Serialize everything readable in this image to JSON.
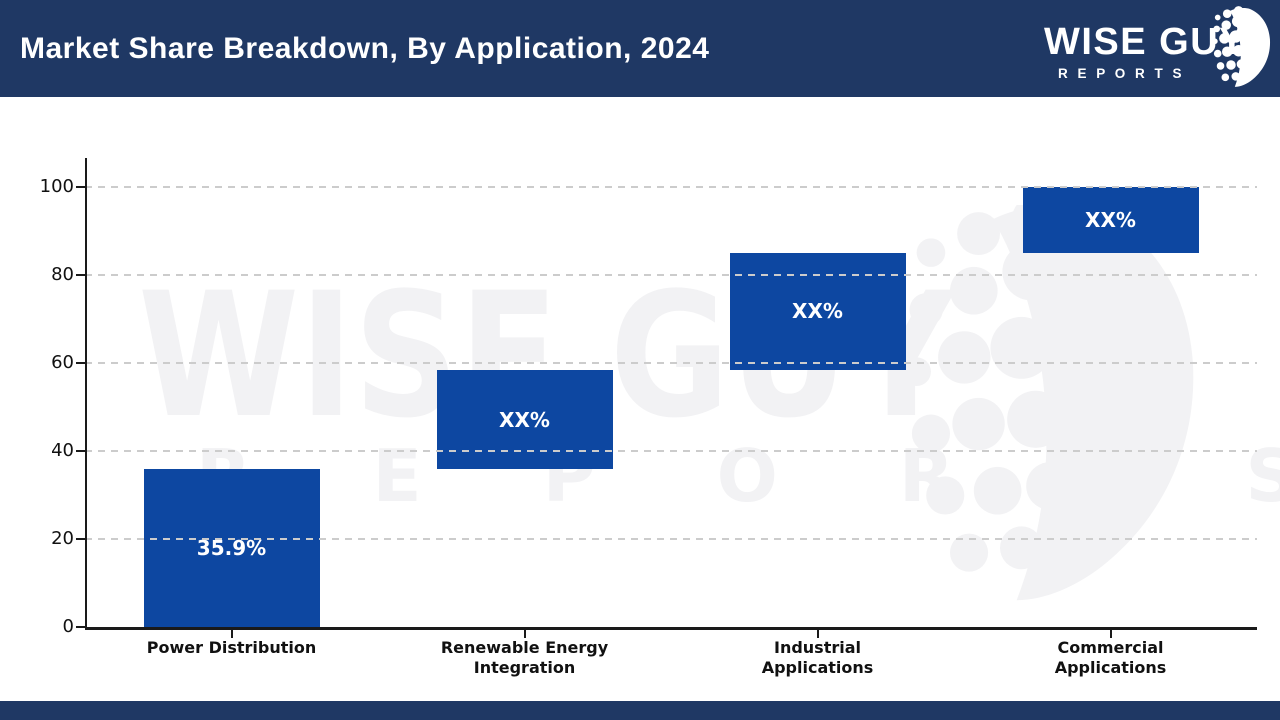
{
  "header": {
    "title": "Market Share Breakdown, By Application, 2024",
    "logo": {
      "line1": "WISE GUY",
      "line2": "R E P O R T S"
    }
  },
  "watermark": {
    "line1": "WISE GUY",
    "line2": "R E P O R T S"
  },
  "colors": {
    "header_bg": "#1f3864",
    "footer_bg": "#1f3864",
    "bar": "#0d47a1",
    "bar_label": "#ffffff",
    "gridline": "#cccccc",
    "axis": "#1a1a1a",
    "watermark": "#f2f2f4"
  },
  "chart_data": {
    "type": "bar",
    "subtype": "waterfall",
    "title": "Market Share Breakdown, By Application, 2024",
    "categories": [
      "Power Distribution",
      "Renewable Energy\nIntegration",
      "Industrial\nApplications",
      "Commercial\nApplications"
    ],
    "segments": [
      {
        "category": "Power Distribution",
        "start": 0,
        "end": 35.9,
        "value": 35.9,
        "label": "35.9%"
      },
      {
        "category": "Renewable Energy Integration",
        "start": 35.9,
        "end": 58.4,
        "value": 22.5,
        "label": "XX%"
      },
      {
        "category": "Industrial Applications",
        "start": 58.4,
        "end": 85.1,
        "value": 26.7,
        "label": "XX%"
      },
      {
        "category": "Commercial Applications",
        "start": 85.1,
        "end": 100,
        "value": 14.9,
        "label": "XX%"
      }
    ],
    "ylim": [
      0,
      100
    ],
    "yticks": [
      0,
      20,
      40,
      60,
      80,
      100
    ],
    "xlabel": "",
    "ylabel": "",
    "grid": "horizontal-dashed",
    "legend": "none"
  }
}
